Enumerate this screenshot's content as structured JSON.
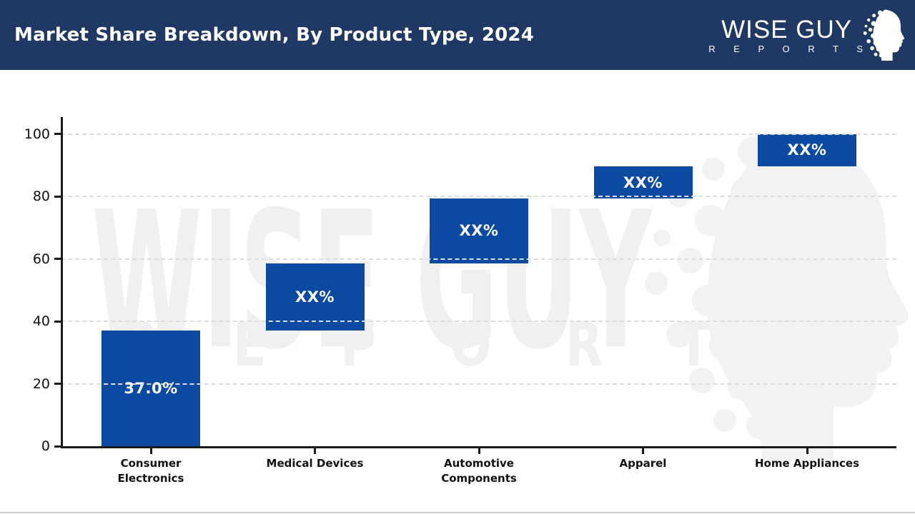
{
  "header": {
    "title": "Market Share Breakdown, By Product Type, 2024",
    "background_color": "#1f3864",
    "logo": {
      "line1": "WISE GUY",
      "line2": "R E P O R T S"
    }
  },
  "watermark": {
    "line1": "WISE GUY",
    "line2": "R E P O R T S"
  },
  "footer": {
    "divider_color": "#cccccc"
  },
  "chart_data": {
    "type": "bar",
    "subtype": "waterfall",
    "title": "Market Share Breakdown, By Product Type, 2024",
    "categories": [
      "Consumer Electronics",
      "Medical Devices",
      "Automotive Components",
      "Apparel",
      "Home Appliances"
    ],
    "category_lines": [
      [
        "Consumer",
        "Electronics"
      ],
      [
        "Medical Devices"
      ],
      [
        "Automotive",
        "Components"
      ],
      [
        "Apparel"
      ],
      [
        "Home Appliances"
      ]
    ],
    "segments": [
      {
        "category": "Consumer Electronics",
        "start": 0,
        "end": 37.0,
        "label": "37.0%"
      },
      {
        "category": "Medical Devices",
        "start": 37.0,
        "end": 58.5,
        "label": "XX%"
      },
      {
        "category": "Automotive Components",
        "start": 58.5,
        "end": 79.4,
        "label": "XX%"
      },
      {
        "category": "Apparel",
        "start": 79.4,
        "end": 89.5,
        "label": "XX%"
      },
      {
        "category": "Home Appliances",
        "start": 89.5,
        "end": 100.0,
        "label": "XX%"
      }
    ],
    "xlabel": "",
    "ylabel": "",
    "ylim": [
      0,
      105
    ],
    "yticks": [
      0,
      20,
      40,
      60,
      80,
      100
    ],
    "grid": {
      "axis": "y",
      "style": "dashed",
      "color": "#dcdcdc",
      "above_bars": true
    },
    "legend": null,
    "bar_color": "#0c49a1",
    "bar_label_color": "#ffffff",
    "axis_color": "#1a1a1a",
    "tick_label_color": "#111111"
  }
}
